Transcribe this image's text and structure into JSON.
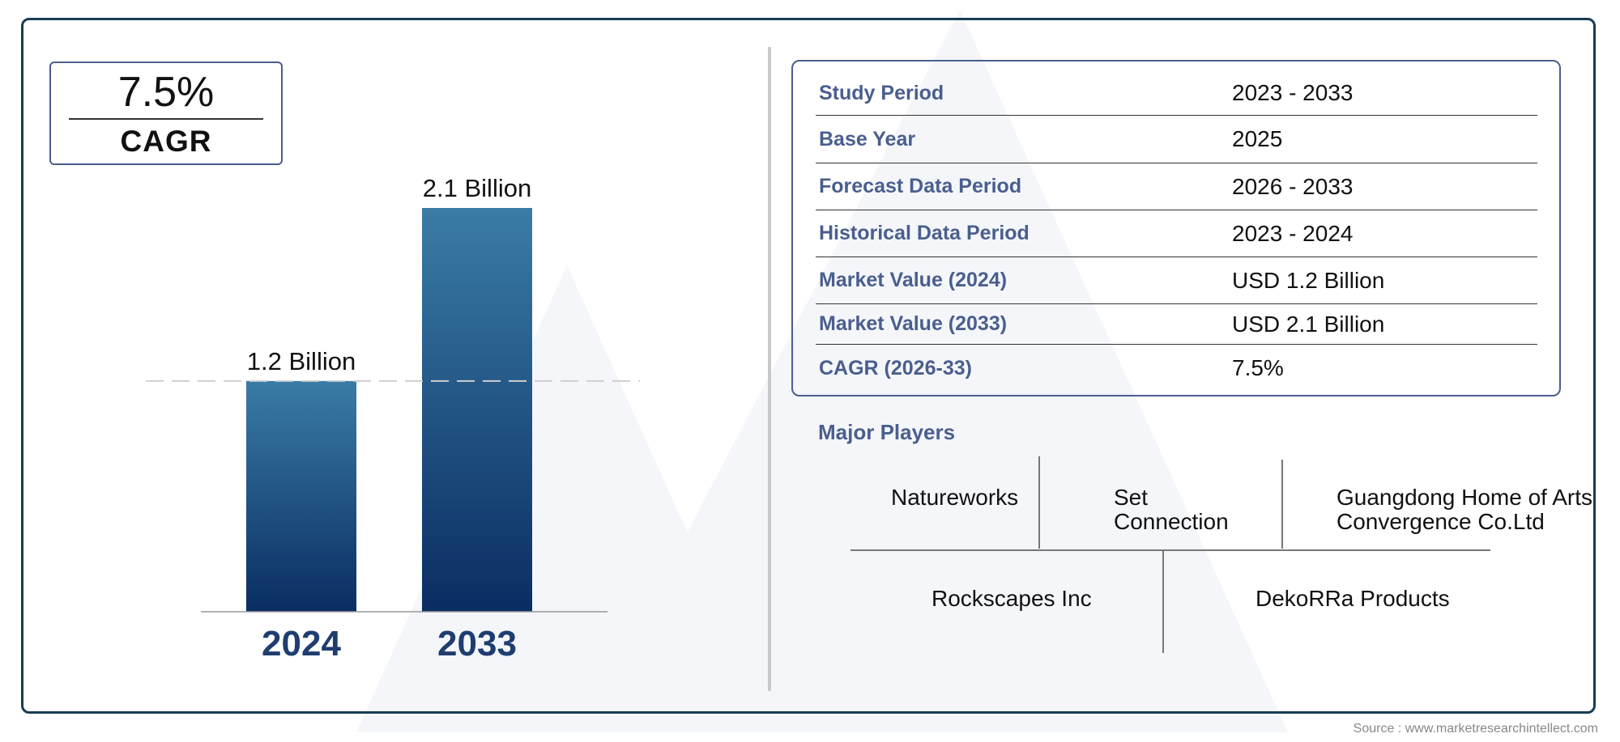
{
  "colors": {
    "frame": "#163d52",
    "accent_text": "#4a5e8e",
    "bar_top": "#3a7ca6",
    "bar_bottom": "#0a2d62",
    "year_label": "#1f3d6f"
  },
  "cagr_badge": {
    "value": "7.5%",
    "label": "CAGR"
  },
  "chart_data": {
    "type": "bar",
    "categories": [
      "2024",
      "2033"
    ],
    "values": [
      1.2,
      2.1
    ],
    "data_labels": [
      "1.2 Billion",
      "2.1 Billion"
    ],
    "title": "",
    "xlabel": "",
    "ylabel": "",
    "ylim": [
      0,
      2.1
    ],
    "grid": false,
    "reference_line": {
      "value": 1.2,
      "style": "dashed"
    }
  },
  "summary": {
    "rows": [
      {
        "label": "Study Period",
        "value": "2023 - 2033"
      },
      {
        "label": "Base Year",
        "value": "2025"
      },
      {
        "label": "Forecast Data Period",
        "value": "2026 - 2033"
      },
      {
        "label": "Historical Data Period",
        "value": "2023 - 2024"
      },
      {
        "label": "Market Value (2024)",
        "value": "USD 1.2 Billion"
      },
      {
        "label": "Market Value (2033)",
        "value": "USD 2.1 Billion"
      },
      {
        "label": "CAGR (2026-33)",
        "value": "7.5%"
      }
    ]
  },
  "players": {
    "title": "Major Players",
    "names": [
      "Natureworks",
      "Set\nConnection",
      "Guangdong Home of Arts\nConvergence Co.Ltd",
      "Rockscapes Inc",
      "DekoRRa Products"
    ]
  },
  "source": "Source : www.marketresearchintellect.com"
}
